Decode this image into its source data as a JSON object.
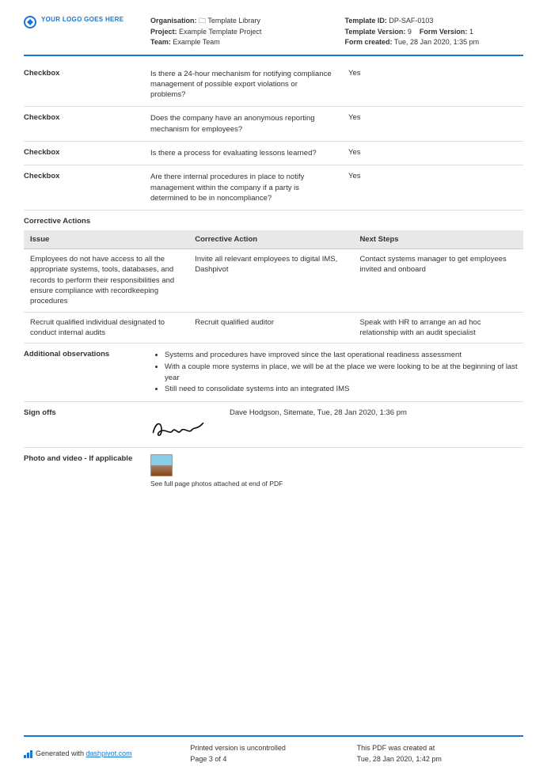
{
  "header": {
    "logo_text": "YOUR LOGO GOES HERE",
    "organisation_label": "Organisation:",
    "organisation": "🗀 Template Library",
    "project_label": "Project:",
    "project": "Example Template Project",
    "team_label": "Team:",
    "team": "Example Team",
    "template_id_label": "Template ID:",
    "template_id": "DP-SAF-0103",
    "template_version_label": "Template Version:",
    "template_version": "9",
    "form_version_label": "Form Version:",
    "form_version": "1",
    "form_created_label": "Form created:",
    "form_created": "Tue, 28 Jan 2020, 1:35 pm"
  },
  "checkboxes": [
    {
      "label": "Checkbox",
      "question": "Is there a 24-hour mechanism for notifying compliance management of possible export violations or problems?",
      "answer": "Yes"
    },
    {
      "label": "Checkbox",
      "question": "Does the company have an anonymous reporting mechanism for employees?",
      "answer": "Yes"
    },
    {
      "label": "Checkbox",
      "question": "Is there a process for evaluating lessons learned?",
      "answer": "Yes"
    },
    {
      "label": "Checkbox",
      "question": "Are there internal procedures in place to notify management within the company if a party is determined to be in noncompliance?",
      "answer": "Yes"
    }
  ],
  "corrective": {
    "title": "Corrective Actions",
    "columns": [
      "Issue",
      "Corrective Action",
      "Next Steps"
    ],
    "rows": [
      [
        "Employees do not have access to all the appropriate systems, tools, databases, and records to perform their responsibilities and ensure compliance with recordkeeping procedures",
        "Invite all relevant employees to digital IMS, Dashpivot",
        "Contact systems manager to get employees invited and onboard"
      ],
      [
        "Recruit qualified individual designated to conduct internal audits",
        "Recruit qualified auditor",
        "Speak with HR to arrange an ad hoc relationship with an audit specialist"
      ]
    ]
  },
  "observations": {
    "label": "Additional observations",
    "items": [
      "Systems and procedures have improved since the last operational readiness assessment",
      "With a couple more systems in place, we will be at the place we were looking to be at the beginning of last year",
      "Still need to consolidate systems into an integrated IMS"
    ]
  },
  "signoff": {
    "label": "Sign offs",
    "meta": "Dave Hodgson, Sitemate, Tue, 28 Jan 2020, 1:36 pm"
  },
  "photo": {
    "label": "Photo and video - If applicable",
    "caption": "See full page photos attached at end of PDF"
  },
  "footer": {
    "generated_prefix": "Generated with ",
    "generated_link": "dashpivot.com",
    "printed_line1": "Printed version is uncontrolled",
    "printed_line2": "Page 3 of 4",
    "created_line1": "This PDF was created at",
    "created_line2": "Tue, 28 Jan 2020, 1:42 pm"
  }
}
